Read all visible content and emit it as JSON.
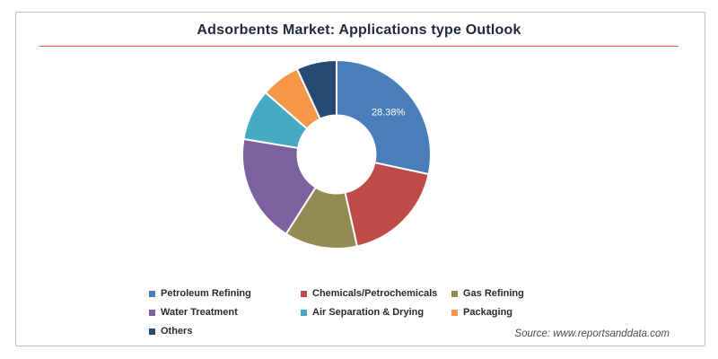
{
  "page": {
    "title": "Adsorbents Market: Applications type Outlook",
    "source": "Source: www.reportsanddata.com"
  },
  "colors": {
    "accent_line": "#e8673d",
    "frame_border": "#bdbdbd",
    "title_text": "#23283e",
    "legend_text": "#2b2b2b",
    "source_text": "#4d4d4d",
    "slice_label": "#ffffff"
  },
  "chart_data": {
    "type": "pie",
    "donut": true,
    "title": "Adsorbents Market: Applications type Outlook",
    "legend_position": "bottom",
    "start_angle_deg": 0,
    "clockwise": true,
    "slices": [
      {
        "name": "Petroleum Refining",
        "value": 28.38,
        "label": "28.38%",
        "color": "#4a7ebb"
      },
      {
        "name": "Chemicals/Petrochemicals",
        "value": 18.12,
        "label": "",
        "color": "#be4b48"
      },
      {
        "name": "Gas Refining",
        "value": 12.5,
        "label": "",
        "color": "#938b54"
      },
      {
        "name": "Water Treatment",
        "value": 18.6,
        "label": "",
        "color": "#7d60a0"
      },
      {
        "name": "Air Separation & Drying",
        "value": 8.8,
        "label": "",
        "color": "#46aac5"
      },
      {
        "name": "Packaging",
        "value": 6.7,
        "label": "",
        "color": "#f79646"
      },
      {
        "name": "Others",
        "value": 6.9,
        "label": "",
        "color": "#264a73"
      }
    ]
  }
}
